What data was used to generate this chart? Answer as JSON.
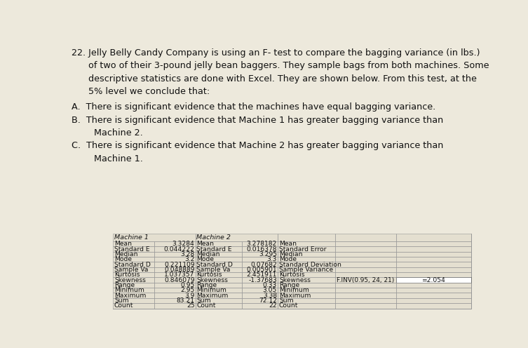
{
  "question_lines": [
    "22. Jelly Belly Candy Company is using an F- test to compare the bagging variance (in lbs.)",
    "      of two of their 3-pound jelly bean baggers. They sample bags from both machines. Some",
    "      descriptive statistics are done with Excel. They are shown below. From this test, at the",
    "      5% level we conclude that:"
  ],
  "option_A": "A.  There is significant evidence that the machines have equal bagging variance.",
  "option_B1": "B.  There is significant evidence that Machine 1 has greater bagging variance than",
  "option_B2": "        Machine 2.",
  "option_C1": "C.  There is significant evidence that Machine 2 has greater bagging variance than",
  "option_C2": "        Machine 1.",
  "table_rows": [
    [
      "Mean",
      "3.3284",
      "Mean",
      "3.278182",
      "Mean"
    ],
    [
      "Standard E",
      "0.044222",
      "Standard E",
      "0.016378",
      "Standard Error"
    ],
    [
      "Median",
      "3.28",
      "Median",
      "3.295",
      "Median"
    ],
    [
      "Mode",
      "3.2",
      "Mode",
      "3.3",
      "Mode"
    ],
    [
      "Standard D",
      "0.221109",
      "Standard D",
      "0.07682",
      "Standard Deviation"
    ],
    [
      "Sample Va",
      "0.048889",
      "Sample Va",
      "0.005901",
      "Sample Variance"
    ],
    [
      "Kurtosis",
      "1.037357",
      "Kurtosis",
      "2.451911",
      "Kurtosis"
    ],
    [
      "Skewness",
      "0.846079",
      "Skewness",
      "-1.37683",
      "Skewness"
    ],
    [
      "Range",
      "0.95",
      "Range",
      "0.33",
      "Range"
    ],
    [
      "Minimum",
      "2.95",
      "Minimum",
      "3.05",
      "Minimum"
    ],
    [
      "Maximum",
      "3.9",
      "Maximum",
      "3.38",
      "Maximum"
    ],
    [
      "Sum",
      "83.21",
      "Sum",
      "72.12",
      "Sum"
    ],
    [
      "Count",
      "25",
      "Count",
      "22",
      "Count"
    ]
  ],
  "finv_label": "F.INV(0.95, 24, 21)",
  "finv_value": "=2.054",
  "skewness_row_idx": 7,
  "bg_color": "#ede9dc",
  "table_bg": "#e4dfd0",
  "border_color": "#999999",
  "text_color": "#111111"
}
